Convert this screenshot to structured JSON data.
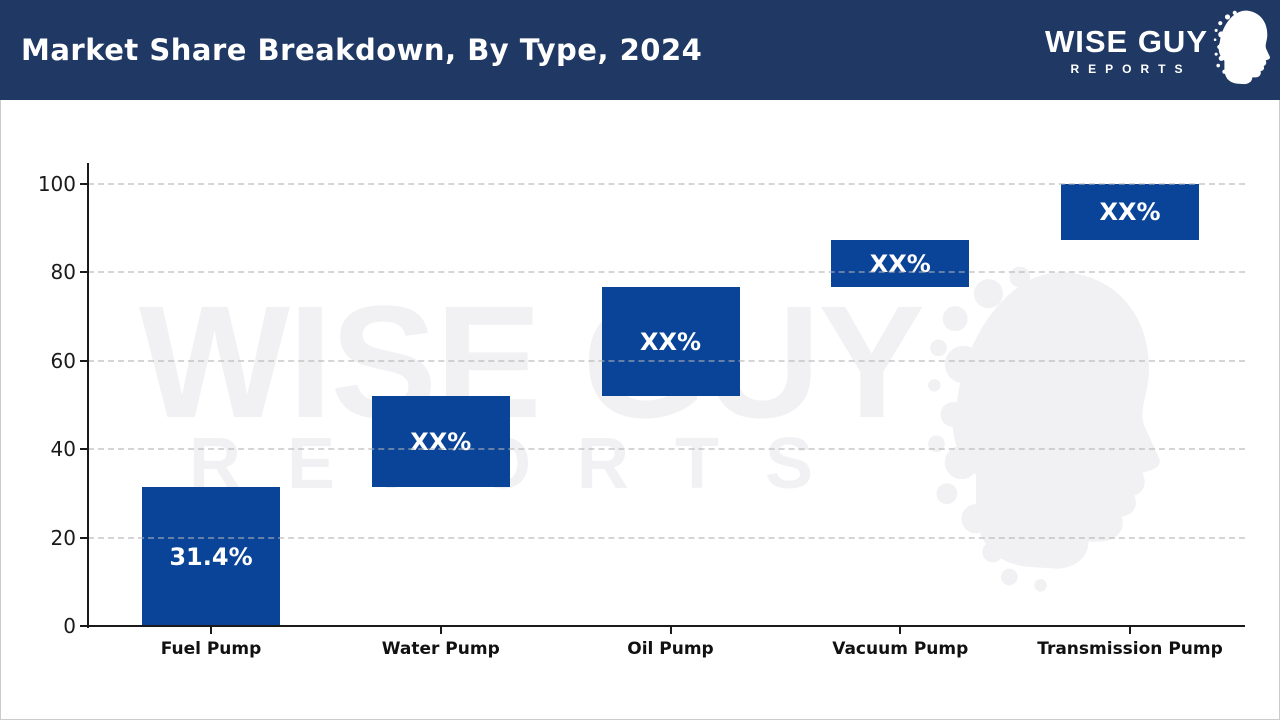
{
  "header": {
    "title": "Market Share Breakdown, By Type, 2024",
    "logo": {
      "line1": "WISE GUY",
      "line2": "REPORTS"
    }
  },
  "watermark": {
    "line1": "WISE GUY",
    "line2": "REPORTS"
  },
  "chart_data": {
    "type": "bar",
    "subtype": "waterfall",
    "title": "Market Share Breakdown, By Type, 2024",
    "categories": [
      "Fuel Pump",
      "Water Pump",
      "Oil Pump",
      "Vacuum Pump",
      "Transmission Pump"
    ],
    "segments": [
      {
        "category": "Fuel Pump",
        "start": 0,
        "end": 31.4,
        "label": "31.4%"
      },
      {
        "category": "Water Pump",
        "start": 31.4,
        "end": 52.0,
        "label": "XX%"
      },
      {
        "category": "Oil Pump",
        "start": 52.0,
        "end": 76.7,
        "label": "XX%"
      },
      {
        "category": "Vacuum Pump",
        "start": 76.7,
        "end": 87.3,
        "label": "XX%"
      },
      {
        "category": "Transmission Pump",
        "start": 87.3,
        "end": 100.0,
        "label": "XX%"
      }
    ],
    "yticks": [
      0,
      20,
      40,
      60,
      80,
      100
    ],
    "ylim": [
      0,
      105
    ],
    "xlabel": "",
    "ylabel": "",
    "grid": "horizontal-dashed",
    "legend": "none",
    "colors": {
      "bar": "#0a4499",
      "bar_label": "#ffffff",
      "axis": "#1a1a1a",
      "tick_label": "#1a1a1a",
      "gridline": "#c8c8c8"
    }
  },
  "theme": {
    "header_bg": "#203864",
    "header_text": "#ffffff",
    "page_bg": "#ffffff",
    "border": "#cccccc",
    "watermark_color": "#f1f1f4"
  }
}
